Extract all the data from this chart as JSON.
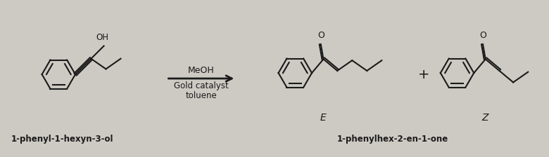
{
  "background_color": "#cccac3",
  "line_color": "#1a1a1a",
  "arrow_color": "#1a1a1a",
  "label_reactant": "1-phenyl-1-hexyn-3-ol",
  "label_product": "1-phenylhex-2-en-1-one",
  "label_E": "E",
  "label_Z": "Z",
  "label_plus": "+",
  "reagent_line1": "MeOH",
  "reagent_line2": "Gold catalyst",
  "reagent_line3": "toluene",
  "label_OH": "OH",
  "label_O1": "O",
  "label_O2": "O",
  "figsize": [
    7.8,
    2.24
  ],
  "dpi": 100
}
